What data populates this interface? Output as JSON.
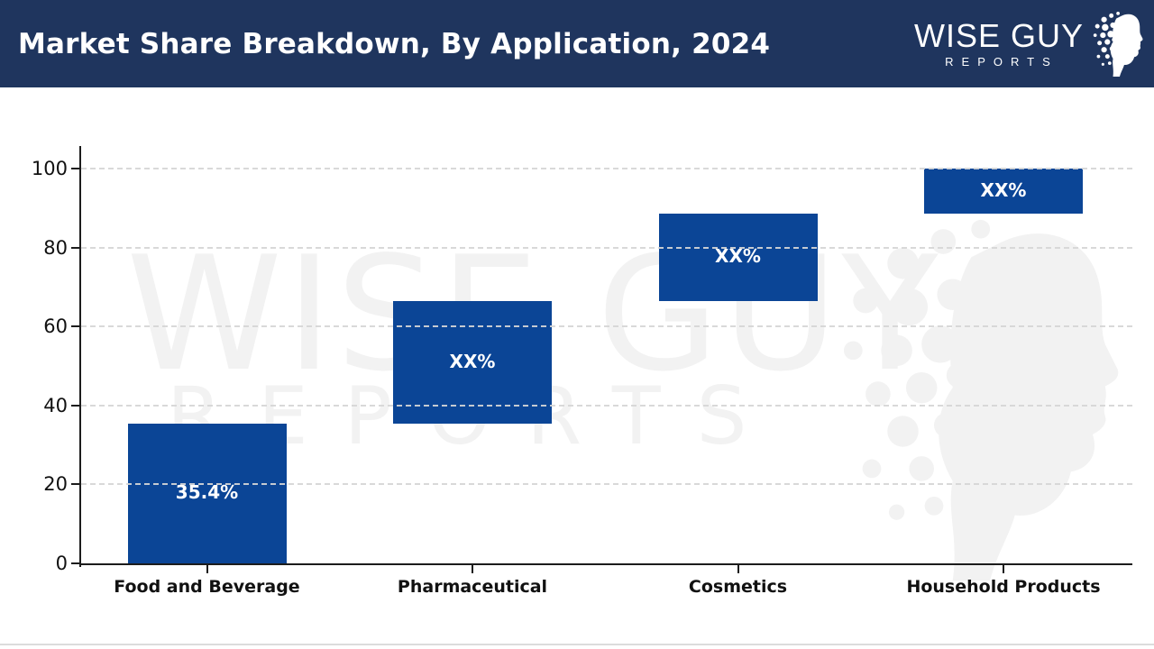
{
  "header": {
    "title": "Market Share Breakdown, By Application, 2024",
    "bg_color": "#1f355e",
    "logo": {
      "line1": "WISE GUY",
      "line2": "REPORTS"
    }
  },
  "watermark": {
    "line1": "WISE GUY",
    "line2": "REPORTS"
  },
  "chart_data": {
    "type": "bar",
    "subtype": "waterfall",
    "title": "Market Share Breakdown, By Application, 2024",
    "categories": [
      "Food and Beverage",
      "Pharmaceutical",
      "Cosmetics",
      "Household Products"
    ],
    "segments": [
      {
        "category": "Food and Beverage",
        "start": 0,
        "end": 35.4,
        "label": "35.4%"
      },
      {
        "category": "Pharmaceutical",
        "start": 35.4,
        "end": 66.5,
        "label": "XX%"
      },
      {
        "category": "Cosmetics",
        "start": 66.5,
        "end": 88.6,
        "label": "XX%"
      },
      {
        "category": "Household Products",
        "start": 88.6,
        "end": 100,
        "label": "XX%"
      }
    ],
    "y_ticks": [
      0,
      20,
      40,
      60,
      80,
      100
    ],
    "ylim": [
      0,
      105
    ],
    "xlabel": "",
    "ylabel": "",
    "bar_color": "#0b4596",
    "grid": "horizontal-dashed",
    "legend": "none"
  }
}
